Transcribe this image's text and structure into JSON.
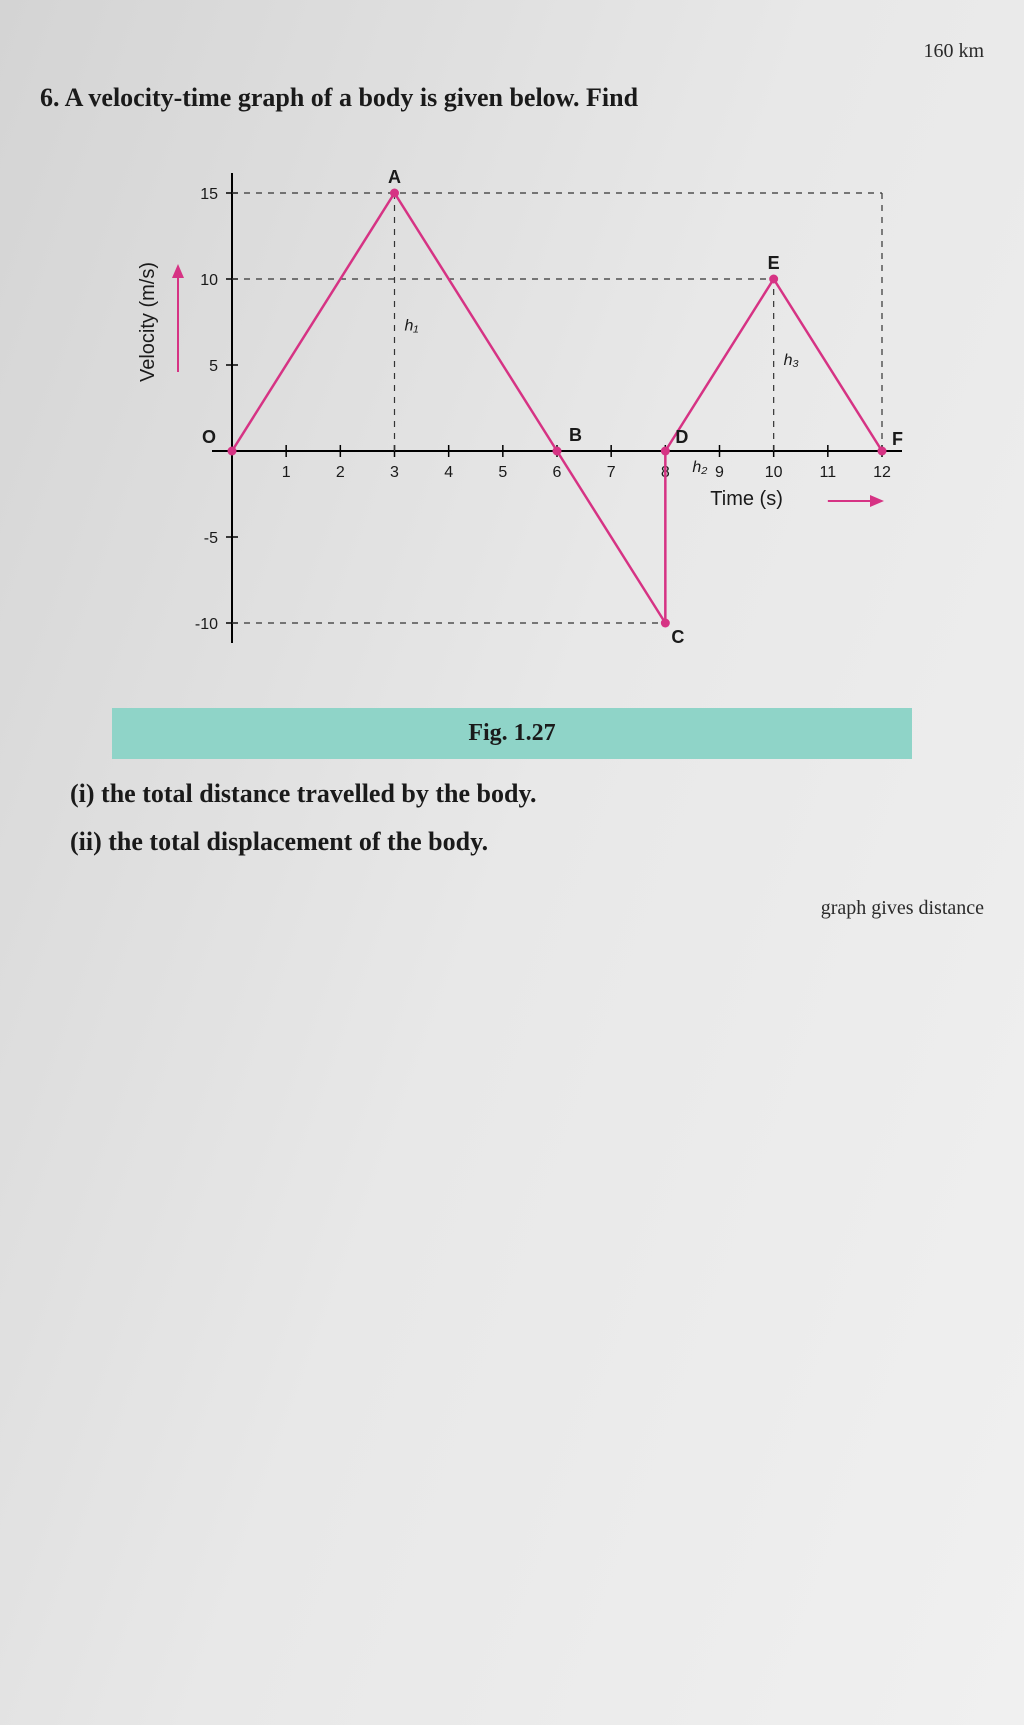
{
  "header": {
    "right_text": "160 km"
  },
  "question": {
    "number": "6.",
    "text": "A velocity-time graph of a body is given below. Find"
  },
  "chart": {
    "type": "line",
    "x_label": "Time (s)",
    "y_label": "Velocity (m/s)",
    "x_ticks": [
      1,
      2,
      3,
      4,
      5,
      6,
      7,
      8,
      9,
      10,
      11,
      12
    ],
    "y_ticks_pos": [
      5,
      10,
      15
    ],
    "y_ticks_neg": [
      -5,
      -10
    ],
    "ylim": [
      -10,
      15
    ],
    "xlim": [
      0,
      12
    ],
    "points": {
      "O": {
        "x": 0,
        "y": 0,
        "label": "O"
      },
      "A": {
        "x": 3,
        "y": 15,
        "label": "A"
      },
      "B": {
        "x": 6,
        "y": 0,
        "label": "B"
      },
      "C": {
        "x": 8,
        "y": -10,
        "label": "C"
      },
      "D": {
        "x": 8,
        "y": 0,
        "label": "D"
      },
      "E": {
        "x": 10,
        "y": 10,
        "label": "E"
      },
      "F": {
        "x": 12,
        "y": 0,
        "label": "F"
      }
    },
    "segments": [
      [
        "O",
        "A"
      ],
      [
        "A",
        "B"
      ],
      [
        "B",
        "C"
      ],
      [
        "C",
        "D"
      ],
      [
        "D",
        "E"
      ],
      [
        "E",
        "F"
      ]
    ],
    "h_labels": {
      "h1": {
        "text": "h₁",
        "near_x": 3,
        "near_y": 7
      },
      "h2": {
        "text": "h₂",
        "near_x": 8.5,
        "near_y": -1
      },
      "h3": {
        "text": "h₃",
        "near_x": 10,
        "near_y": 5
      }
    },
    "colors": {
      "line": "#d63384",
      "arrow": "#d63384",
      "axis": "#000000",
      "dash": "#333333",
      "tick_text": "#1a1a1a",
      "point_fill": "#d63384"
    },
    "stroke_width": {
      "line": 2.5,
      "axis": 2,
      "dash": 1.2
    },
    "font_size": {
      "axis_label": 20,
      "tick": 16,
      "point_label": 18,
      "h_label": 16
    }
  },
  "figure_label": "Fig. 1.27",
  "subquestions": {
    "i": "(i) the total distance travelled by the body.",
    "ii": "(ii) the total displacement of the body."
  },
  "footer": {
    "right_text": "graph gives distance"
  }
}
